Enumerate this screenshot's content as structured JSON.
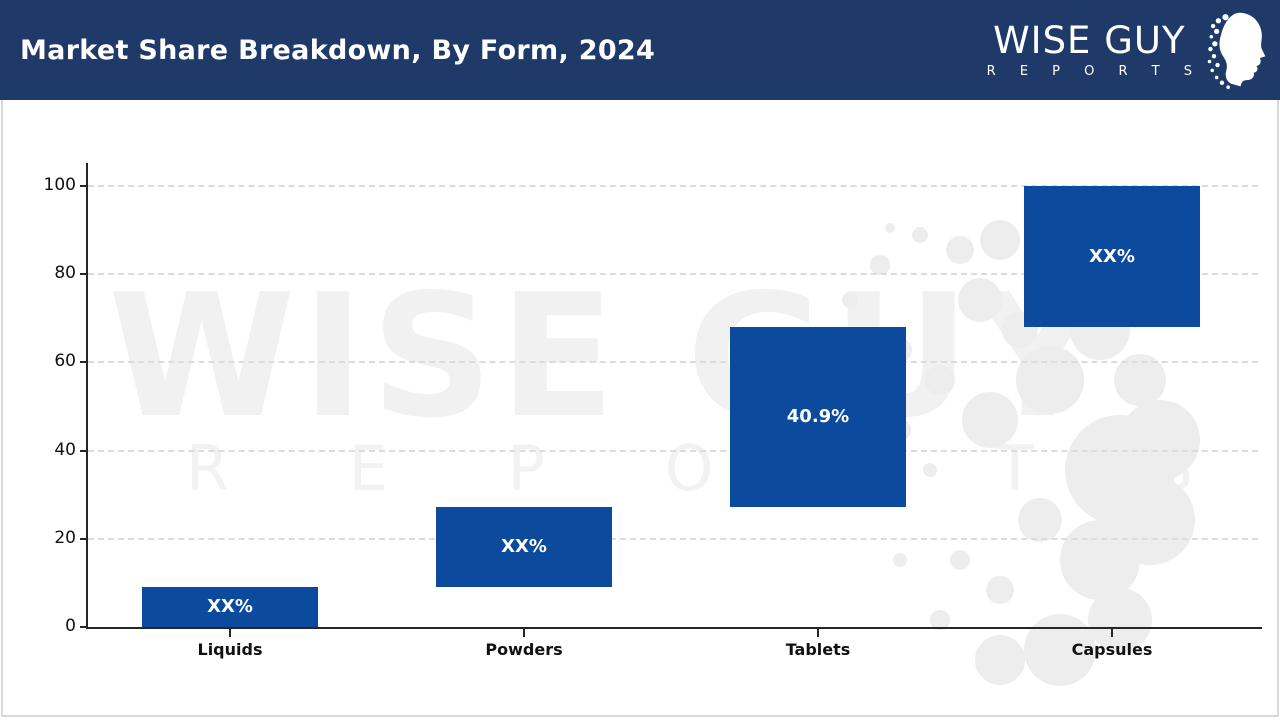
{
  "header": {
    "title": "Market Share Breakdown, By Form, 2024",
    "bg_color": "#1f3a68",
    "logo": {
      "line1": "WISE GUY",
      "line2": "R E P O R T S"
    }
  },
  "watermark": {
    "line1": "WISE GUY",
    "line2": "R E P O R T S"
  },
  "chart_data": {
    "type": "bar",
    "subtype": "waterfall",
    "title": "Market Share Breakdown, By Form, 2024",
    "categories": [
      "Liquids",
      "Powders",
      "Tablets",
      "Capsules"
    ],
    "segments": [
      {
        "category": "Liquids",
        "start": 0,
        "end": 9.1,
        "value": 9.1,
        "label": "XX%"
      },
      {
        "category": "Powders",
        "start": 9.1,
        "end": 27.2,
        "value": 18.1,
        "label": "XX%"
      },
      {
        "category": "Tablets",
        "start": 27.2,
        "end": 68.1,
        "value": 40.9,
        "label": "40.9%"
      },
      {
        "category": "Capsules",
        "start": 68.1,
        "end": 100,
        "value": 31.9,
        "label": "XX%"
      }
    ],
    "y_ticks": [
      0,
      20,
      40,
      60,
      80,
      100
    ],
    "ylim": [
      0,
      105
    ],
    "xlabel": "",
    "ylabel": "",
    "legend": "none",
    "grid": "horizontal-dashed",
    "bar_color": "#0c4a9e",
    "bar_label_color": "#ffffff",
    "gridline_color": "#dcdcdc",
    "axis_color": "#262626"
  }
}
